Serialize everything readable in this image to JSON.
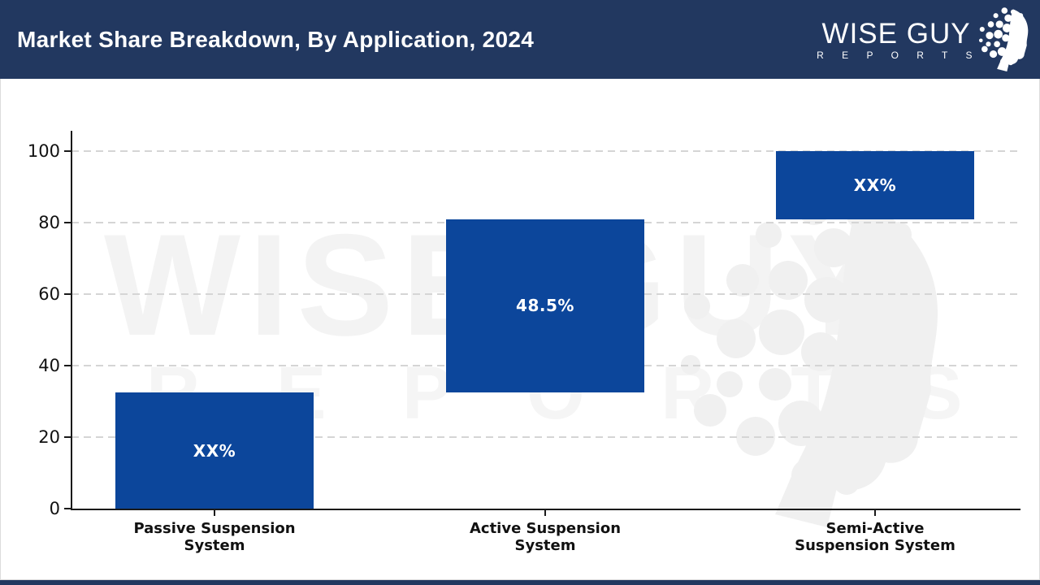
{
  "header": {
    "title": "Market Share Breakdown, By Application, 2024",
    "bg_color": "#223860",
    "logo": {
      "line1": "WISE GUY",
      "line2": "R E P O R T S"
    }
  },
  "watermark": {
    "line1": "WISE GUY",
    "line2": "R E P O R T S"
  },
  "chart_data": {
    "type": "bar",
    "subtype": "floating-waterfall",
    "title": "Market Share Breakdown, By Application, 2024",
    "xlabel": "",
    "ylabel": "",
    "ylim": [
      0,
      100
    ],
    "yticks": [
      0,
      20,
      40,
      60,
      80,
      100
    ],
    "grid": "horizontal-dashed",
    "legend": "none",
    "bar_color": "#0c469b",
    "bar_label_color": "#ffffff",
    "categories": [
      {
        "label": "Passive Suspension System",
        "line1": "Passive Suspension",
        "line2": "System"
      },
      {
        "label": "Active Suspension System",
        "line1": "Active Suspension",
        "line2": "System"
      },
      {
        "label": "Semi-Active Suspension System",
        "line1": "Semi-Active",
        "line2": "Suspension System"
      }
    ],
    "segments": [
      {
        "category": "Passive Suspension System",
        "start": 0,
        "end": 32.5,
        "label": "XX%"
      },
      {
        "category": "Active Suspension System",
        "start": 32.5,
        "end": 81,
        "label": "48.5%"
      },
      {
        "category": "Semi-Active Suspension System",
        "start": 81,
        "end": 100,
        "label": "XX%"
      }
    ]
  }
}
